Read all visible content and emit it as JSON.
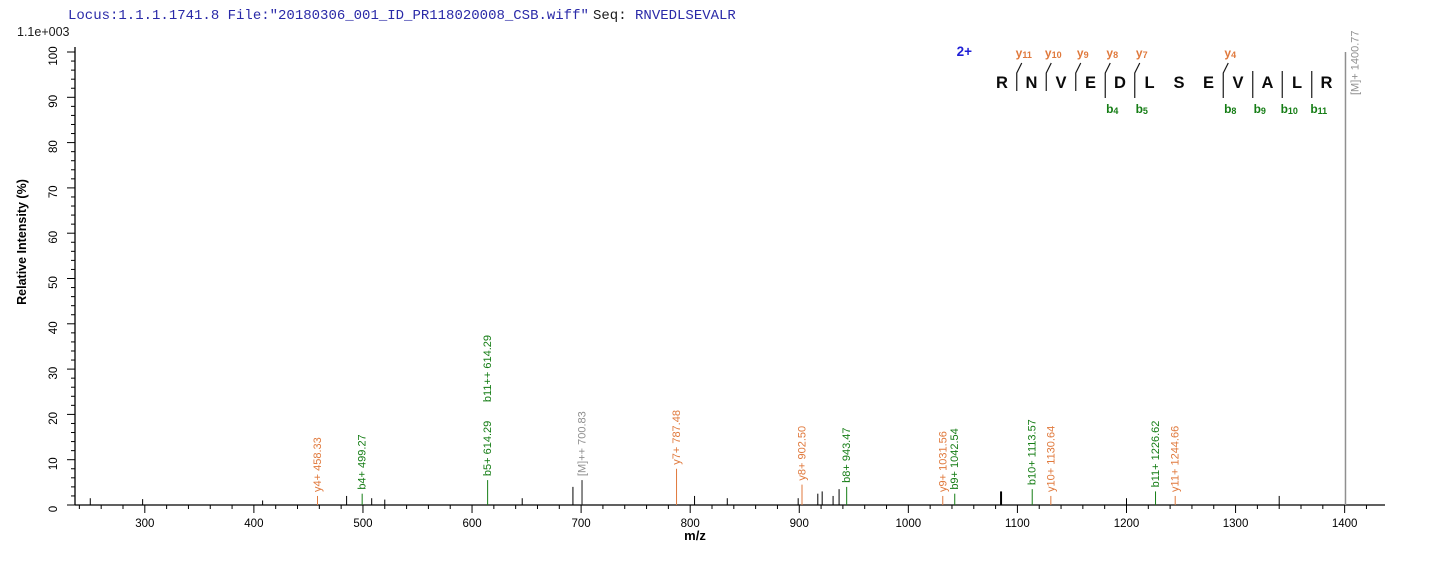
{
  "header": {
    "locus_file": "Locus:1.1.1.1741.8 File:\"20180306_001_ID_PR118020008_CSB.wiff\"",
    "seq_label": "Seq: ",
    "seq_value": "RNVEDLSEVALR",
    "max_intensity": "1.1e+003"
  },
  "colors": {
    "header_text": "#2a2aa8",
    "seq_label_text": "#1a1a1a",
    "charge_label": "#1f1fd6",
    "y_ion": "#e0793c",
    "b_ion": "#157d15",
    "precursor": "#8f8f8f",
    "peak_default": "#000000",
    "axis": "#000000",
    "residue": "#0a0a0a"
  },
  "sequence_diagram": {
    "charge": "2+",
    "residues": [
      "R",
      "N",
      "V",
      "E",
      "D",
      "L",
      "S",
      "E",
      "V",
      "A",
      "L",
      "R"
    ],
    "y_ions": [
      {
        "name": "y",
        "num": "11",
        "gap": 1
      },
      {
        "name": "y",
        "num": "10",
        "gap": 2
      },
      {
        "name": "y",
        "num": "9",
        "gap": 3
      },
      {
        "name": "y",
        "num": "8",
        "gap": 4
      },
      {
        "name": "y",
        "num": "7",
        "gap": 5
      },
      {
        "name": "y",
        "num": "4",
        "gap": 8
      }
    ],
    "b_ions": [
      {
        "name": "b",
        "num": "4",
        "gap": 4
      },
      {
        "name": "b",
        "num": "5",
        "gap": 5
      },
      {
        "name": "b",
        "num": "8",
        "gap": 8
      },
      {
        "name": "b",
        "num": "9",
        "gap": 9
      },
      {
        "name": "b",
        "num": "10",
        "gap": 10
      },
      {
        "name": "b",
        "num": "11",
        "gap": 11
      }
    ]
  },
  "chart_data": {
    "type": "bar",
    "subtype": "mass-spectrum-stick-plot",
    "title": "",
    "xlabel": "m/z",
    "ylabel": "Relative  Intensity (%)",
    "xlim": [
      236,
      1437
    ],
    "ylim": [
      0,
      100
    ],
    "x_ticks": [
      300,
      400,
      500,
      600,
      700,
      800,
      900,
      1000,
      1100,
      1200,
      1300,
      1400
    ],
    "x_minor_step": 20,
    "y_ticks": [
      0,
      10,
      20,
      30,
      40,
      50,
      60,
      70,
      80,
      90,
      100
    ],
    "y_minor_step": 2,
    "grid": false,
    "labeled_peaks": [
      {
        "mz": 458.33,
        "intensity": 2,
        "ion": "y",
        "labels": [
          "y4+ 458.33"
        ]
      },
      {
        "mz": 499.27,
        "intensity": 2.5,
        "ion": "b",
        "labels": [
          "b4+ 499.27"
        ]
      },
      {
        "mz": 614.29,
        "intensity": 5.5,
        "ion": "b",
        "labels": [
          "b5+ 614.29",
          "b11++ 614.29"
        ]
      },
      {
        "mz": 700.83,
        "intensity": 5.5,
        "ion": "M2+",
        "labels": [
          "[M]++ 700.83"
        ]
      },
      {
        "mz": 787.48,
        "intensity": 8,
        "ion": "y",
        "labels": [
          "y7+ 787.48"
        ]
      },
      {
        "mz": 902.5,
        "intensity": 4.5,
        "ion": "y",
        "labels": [
          "y8+ 902.50"
        ]
      },
      {
        "mz": 943.47,
        "intensity": 4,
        "ion": "b",
        "labels": [
          "b8+ 943.47"
        ]
      },
      {
        "mz": 1031.56,
        "intensity": 2,
        "ion": "y",
        "labels": [
          "y9+ 1031.56"
        ]
      },
      {
        "mz": 1042.54,
        "intensity": 2.5,
        "ion": "b",
        "labels": [
          "b9+ 1042.54"
        ]
      },
      {
        "mz": 1113.57,
        "intensity": 3.5,
        "ion": "b",
        "labels": [
          "b10+ 1113.57"
        ]
      },
      {
        "mz": 1130.64,
        "intensity": 2,
        "ion": "y",
        "labels": [
          "y10+ 1130.64"
        ]
      },
      {
        "mz": 1226.62,
        "intensity": 3,
        "ion": "b",
        "labels": [
          "b11+ 1226.62"
        ]
      },
      {
        "mz": 1244.66,
        "intensity": 2,
        "ion": "y",
        "labels": [
          "y11+ 1244.66"
        ]
      },
      {
        "mz": 1400.77,
        "intensity": 100,
        "ion": "M+",
        "labels": [
          "[M]+ 1400.77"
        ],
        "label_top": true
      }
    ],
    "unlabeled_peaks": [
      [
        250,
        1.5
      ],
      [
        298,
        1.3
      ],
      [
        408,
        1
      ],
      [
        485,
        2
      ],
      [
        508,
        1.5
      ],
      [
        520,
        1.2
      ],
      [
        646,
        1.5
      ],
      [
        692.5,
        4
      ],
      [
        804,
        2
      ],
      [
        834,
        1.5
      ],
      [
        899,
        1.5
      ],
      [
        917,
        2.5
      ],
      [
        921,
        3
      ],
      [
        931,
        2
      ],
      [
        936.5,
        3.5
      ],
      [
        1085,
        3,
        2
      ],
      [
        1200,
        1.5
      ],
      [
        1340,
        2
      ]
    ]
  }
}
